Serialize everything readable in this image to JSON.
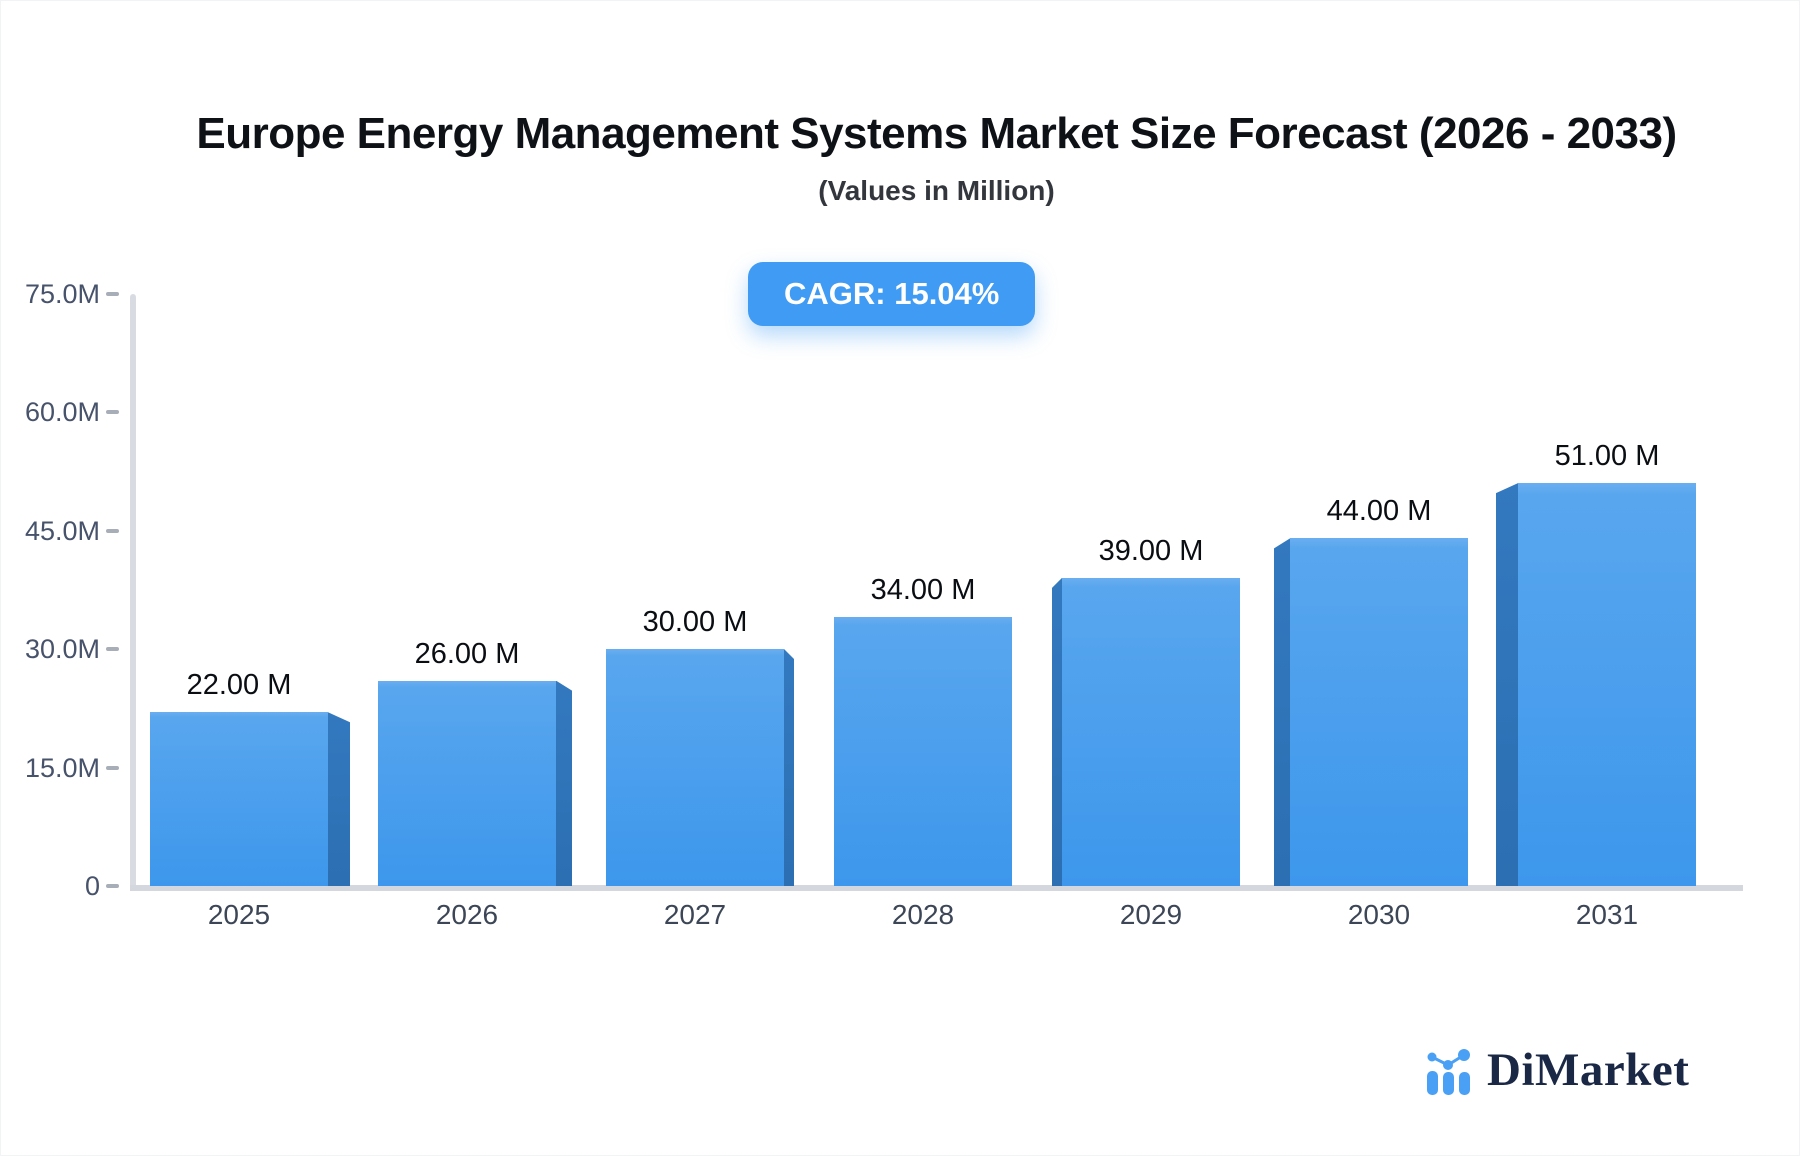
{
  "header": {
    "title": "Europe Energy Management Systems Market Size Forecast (2026 - 2033)",
    "subtitle": "(Values in Million)"
  },
  "badge": {
    "label": "CAGR: 15.04%"
  },
  "chart_data": {
    "type": "bar",
    "title": "Europe Energy Management Systems Market Size Forecast (2026 - 2033)",
    "subtitle": "(Values in Million)",
    "unit": "Million",
    "cagr": "15.04%",
    "categories": [
      "2025",
      "2026",
      "2027",
      "2028",
      "2029",
      "2030",
      "2031"
    ],
    "values": [
      22,
      26,
      30,
      34,
      39,
      44,
      51
    ],
    "value_labels": [
      "22.00 M",
      "26.00 M",
      "30.00 M",
      "34.00 M",
      "39.00 M",
      "44.00 M",
      "51.00 M"
    ],
    "y_ticks": {
      "labels": [
        "75.0M",
        "60.0M",
        "45.0M",
        "30.0M",
        "15.0M",
        "0"
      ],
      "values": [
        75,
        60,
        45,
        30,
        15,
        0
      ]
    },
    "ylim": [
      0,
      75
    ],
    "grid": false,
    "legend": false,
    "bar_style": "3d-extruded"
  },
  "colors": {
    "bar_front_top": "#5CA8EF",
    "bar_front_bottom": "#3D97EC",
    "bar_side": "#2F76BB",
    "axis_line": "#D6DAE0",
    "tick": "#A8AEB8",
    "y_label": "#47526B",
    "x_label": "#3C4656",
    "value_label": "#0A0D12",
    "badge_bg": "#3F9BF3",
    "badge_text": "#FFFFFF",
    "logo_blue": "#4AA0F4",
    "logo_text": "#1A2846"
  },
  "logo": {
    "text": "DiMarket"
  }
}
